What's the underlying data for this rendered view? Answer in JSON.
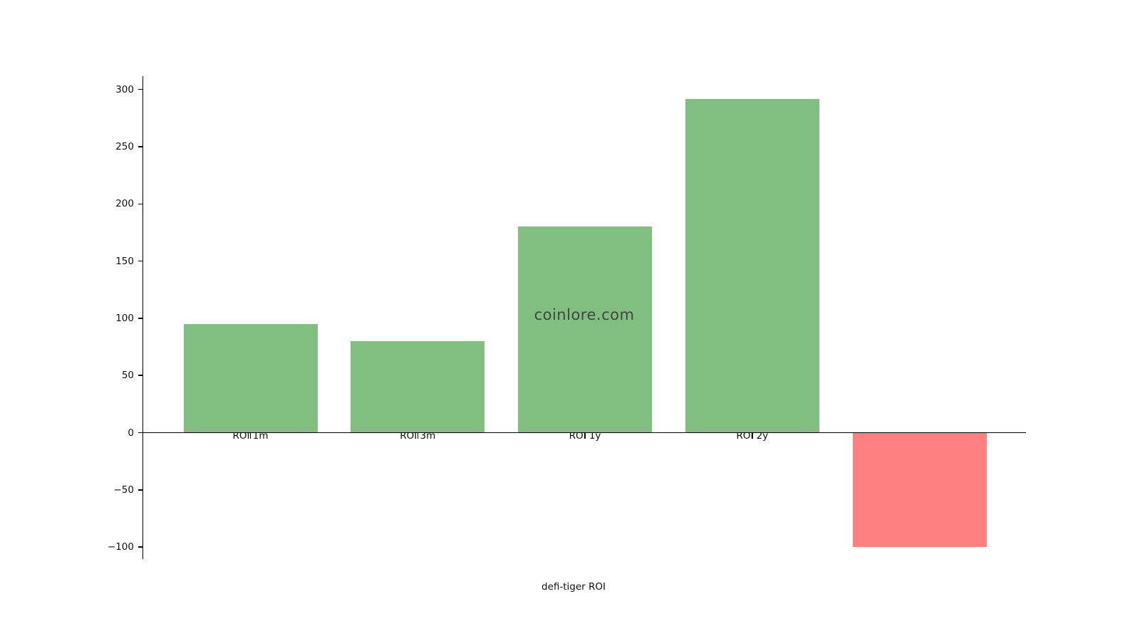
{
  "page": {
    "background_color": "#ffffff"
  },
  "watermark": {
    "text": "coinlore.com",
    "color": "#3c3c3c"
  },
  "chart_data": {
    "type": "bar",
    "title": "defi-tiger ROI",
    "title_position": "bottom-center",
    "categories": [
      "ROI 1m",
      "ROI 3m",
      "ROI 1y",
      "ROI 2y",
      ""
    ],
    "values": [
      95,
      80,
      180,
      292,
      -100
    ],
    "bar_colors": [
      "#80bf80",
      "#80bf80",
      "#80bf80",
      "#80bf80",
      "#ff8080"
    ],
    "positive_color": "#80bf80",
    "negative_color": "#ff8080",
    "yticks": [
      300,
      250,
      200,
      150,
      100,
      50,
      0,
      -50,
      -100
    ],
    "ylim": [
      -110,
      312
    ],
    "xlabel": "",
    "ylabel": "",
    "grid": false,
    "legend": null,
    "axis_color": "#000000",
    "tick_label_color": "#111111",
    "annotations": [
      "coinlore.com"
    ]
  }
}
